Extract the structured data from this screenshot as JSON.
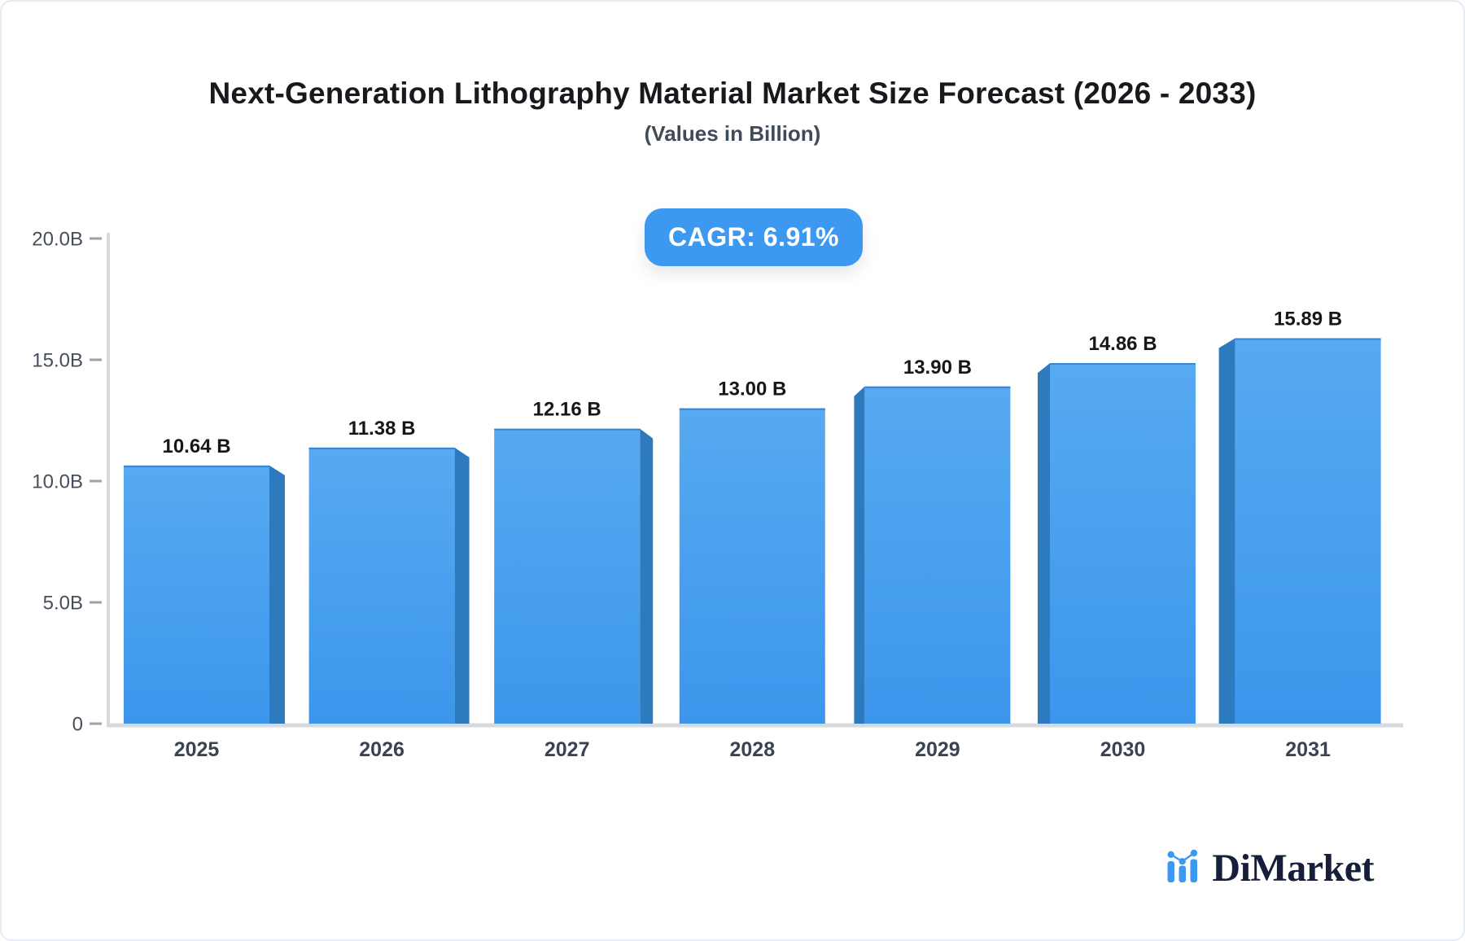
{
  "header": {
    "title": "Next-Generation Lithography Material Market Size Forecast (2026 - 2033)",
    "subtitle": "(Values in Billion)"
  },
  "badge": {
    "text": "CAGR: 6.91%",
    "color": "#3d99f0"
  },
  "chart_data": {
    "type": "bar",
    "title": "Next-Generation Lithography Material Market Size Forecast (2026 - 2033)",
    "subtitle": "(Values in Billion)",
    "categories": [
      "2025",
      "2026",
      "2027",
      "2028",
      "2029",
      "2030",
      "2031"
    ],
    "values": [
      10.64,
      11.38,
      12.16,
      13.0,
      13.9,
      14.86,
      15.89
    ],
    "value_labels": [
      "10.64 B",
      "11.38 B",
      "12.16 B",
      "13.00 B",
      "13.90 B",
      "14.86 B",
      "15.89 B"
    ],
    "xlabel": "",
    "ylabel": "",
    "ylim": [
      0,
      20
    ],
    "y_ticks": {
      "values": [
        0,
        5,
        10,
        15,
        20
      ],
      "labels": [
        "0",
        "5.0B",
        "10.0B",
        "15.0B",
        "20.0B"
      ]
    },
    "grid": false,
    "legend": false,
    "style": "3d-column",
    "bar_color_top": "#57aaf1",
    "bar_color_bottom": "#3c96ec",
    "bar_side_color": "#2d7abe",
    "bar_top_edge_color": "#2f82d0",
    "axis_line_color": "#d6d9de",
    "tick_mark_color": "#9aa2ac",
    "tick_label_color": "#464e5c",
    "category_label_color": "#3b4250",
    "value_label_color": "#15171a"
  },
  "logo": {
    "text": "DiMarket",
    "icon": "bar-line-chart-icon",
    "text_color": "#151f3a",
    "icon_color": "#3b9af0"
  }
}
